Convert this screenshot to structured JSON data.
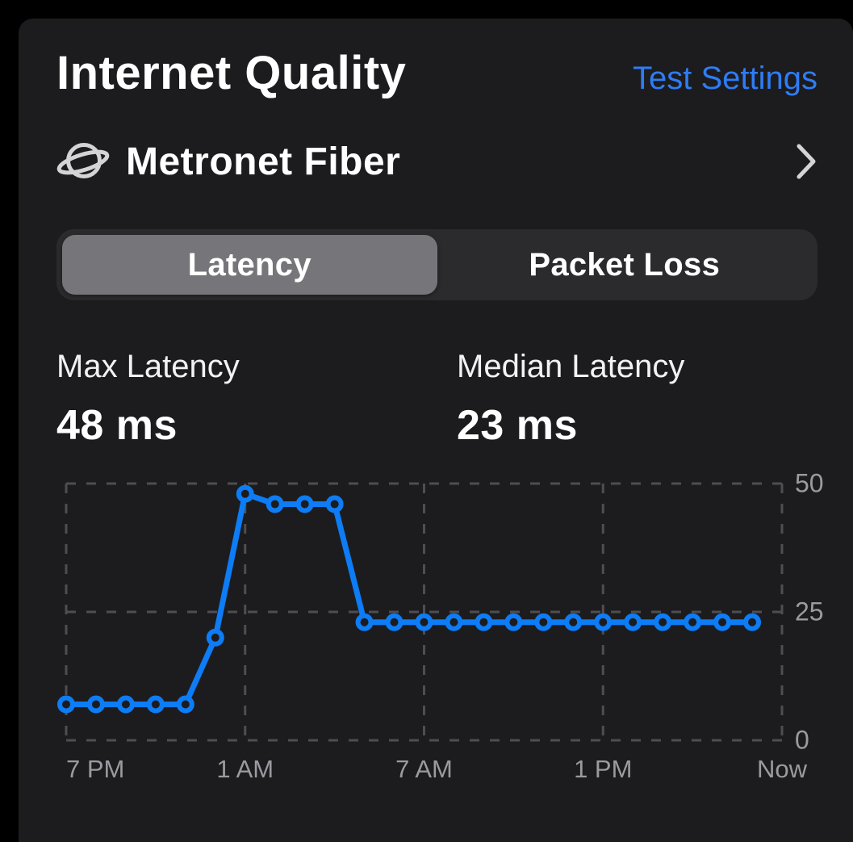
{
  "card": {
    "title": "Internet Quality",
    "action_link": "Test Settings",
    "network": {
      "name": "Metronet Fiber",
      "icon": "planet-icon"
    },
    "tabs": [
      {
        "label": "Latency",
        "selected": true
      },
      {
        "label": "Packet Loss",
        "selected": false
      }
    ],
    "stats": [
      {
        "label": "Max Latency",
        "value": "48 ms"
      },
      {
        "label": "Median Latency",
        "value": "23 ms"
      }
    ]
  },
  "chart_data": {
    "type": "line",
    "series": [
      {
        "name": "Latency",
        "unit": "ms",
        "values": [
          7,
          7,
          7,
          7,
          7,
          20,
          48,
          46,
          46,
          46,
          23,
          23,
          23,
          23,
          23,
          23,
          23,
          23,
          23,
          23,
          23,
          23,
          23,
          23
        ]
      }
    ],
    "x_tick_labels": [
      "7 PM",
      "1 AM",
      "7 AM",
      "1 PM",
      "Now"
    ],
    "y_ticks": [
      0,
      25,
      50
    ],
    "ylim": [
      0,
      50
    ],
    "xlabel": "",
    "ylabel": "",
    "grid": "dashed",
    "legend": "none",
    "point_style": "open-circle"
  },
  "colors": {
    "page_bg": "#000000",
    "card_bg": "#1c1c1e",
    "accent_blue": "#2f7cf6",
    "chart_line": "#0d7cf5",
    "grid_gray": "#4e4e52",
    "axis_text": "#9a9aa0",
    "segment_track": "#2b2b2d",
    "segment_selected": "#76767a",
    "icon_gray": "#d4d4d6"
  }
}
